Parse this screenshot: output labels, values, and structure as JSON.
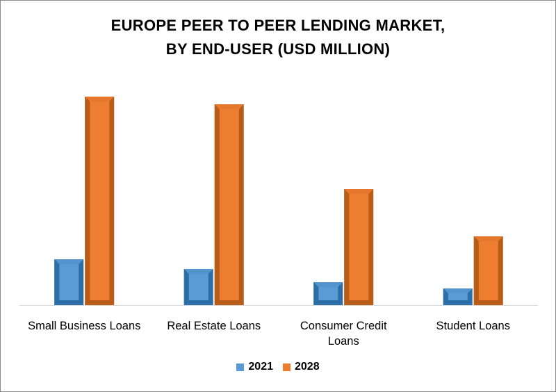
{
  "title_line1": "EUROPE PEER TO PEER LENDING MARKET,",
  "title_line2": "BY END-USER (USD MILLION)",
  "colors": {
    "series_2021": "#5b9bd5",
    "series_2021_dark": "#2e6ea6",
    "series_2028": "#ed7d31",
    "series_2028_dark": "#b85c1a",
    "axis": "#d9d9d9"
  },
  "chart_data": {
    "type": "bar",
    "categories": [
      "Small Business Loans",
      "Real Estate Loans",
      "Consumer Credit Loans",
      "Student Loans"
    ],
    "category_label_lines": [
      [
        "Small Business Loans"
      ],
      [
        "Real Estate  Loans"
      ],
      [
        "Consumer Credit",
        "Loans"
      ],
      [
        "Student Loans"
      ]
    ],
    "series": [
      {
        "name": "2021",
        "values": [
          66,
          52,
          33,
          24
        ]
      },
      {
        "name": "2028",
        "values": [
          300,
          289,
          167,
          99
        ]
      }
    ],
    "ylim": [
      0,
      320
    ],
    "grid": false,
    "legend_position": "bottom"
  },
  "legend": [
    {
      "label": "2021",
      "color": "#5b9bd5"
    },
    {
      "label": "2028",
      "color": "#ed7d31"
    }
  ]
}
